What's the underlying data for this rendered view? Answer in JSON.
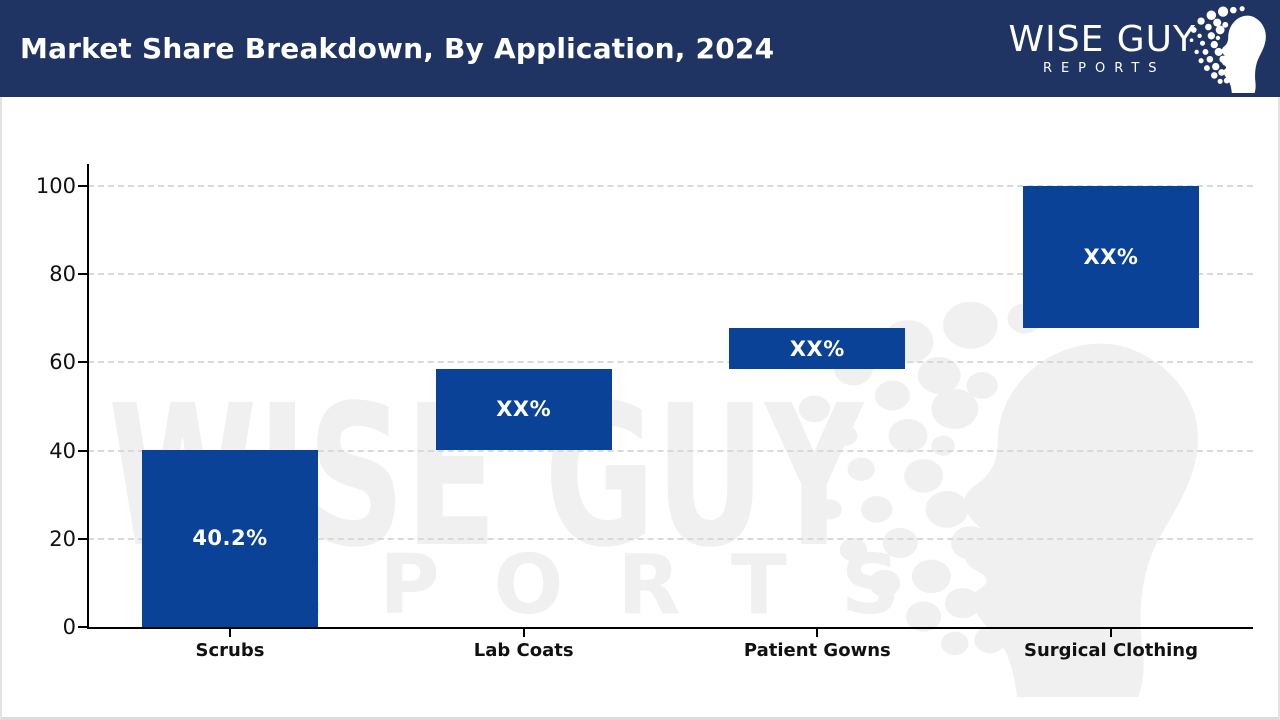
{
  "header": {
    "title": "Market Share Breakdown, By Application, 2024",
    "logo": {
      "wordmark": "WISE GUY",
      "subtext": "REPORTS"
    }
  },
  "watermark": {
    "wordmark": "WISE GUY",
    "subtext": "REPORTS"
  },
  "colors": {
    "header_bg": "#1f3462",
    "bar": "#0a4298",
    "bar_label": "#ffffff",
    "grid": "#d9d9d9",
    "axis": "#000000",
    "watermark": "#f0f0f0"
  },
  "chart_data": {
    "type": "bar",
    "subtype": "floating-segment-waterfall",
    "title": "Market Share Breakdown, By Application, 2024",
    "categories": [
      "Scrubs",
      "Lab Coats",
      "Patient Gowns",
      "Surgical Clothing"
    ],
    "segments": [
      {
        "category": "Scrubs",
        "start": 0,
        "end": 40.2,
        "label": "40.2%"
      },
      {
        "category": "Lab Coats",
        "start": 40.2,
        "end": 58.5,
        "label": "XX%"
      },
      {
        "category": "Patient Gowns",
        "start": 58.5,
        "end": 67.8,
        "label": "XX%"
      },
      {
        "category": "Surgical Clothing",
        "start": 67.8,
        "end": 100,
        "label": "XX%"
      }
    ],
    "yticks": [
      0,
      20,
      40,
      60,
      80,
      100
    ],
    "ylim": [
      0,
      105
    ],
    "xlabel": "",
    "ylabel": "",
    "grid": {
      "axis": "y",
      "style": "dashed"
    },
    "legend": "none"
  }
}
